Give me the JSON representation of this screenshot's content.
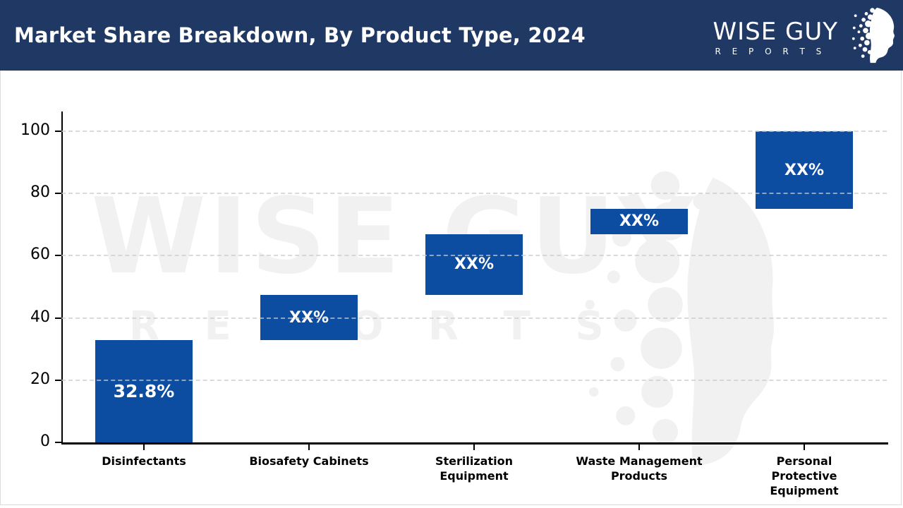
{
  "header": {
    "title": "Market Share Breakdown, By Product Type, 2024",
    "logo": {
      "wordmark": "WISE GUY",
      "reports": "R E P O R T S"
    }
  },
  "watermark": {
    "wordmark": "WISE GUY",
    "reports": "R E P O R T S"
  },
  "chart_data": {
    "type": "bar",
    "subtype": "waterfall",
    "title": "Market Share Breakdown, By Product Type, 2024",
    "categories": [
      "Disinfectants",
      "Biosafety Cabinets",
      "Sterilization\nEquipment",
      "Waste Management\nProducts",
      "Personal\nProtective\nEquipment"
    ],
    "segments": [
      {
        "category": "Disinfectants",
        "start": 0,
        "end": 32.8,
        "label": "32.8%"
      },
      {
        "category": "Biosafety Cabinets",
        "start": 32.8,
        "end": 47.4,
        "label": "XX%"
      },
      {
        "category": "Sterilization Equipment",
        "start": 47.4,
        "end": 67.0,
        "label": "XX%"
      },
      {
        "category": "Waste Management Products",
        "start": 67.0,
        "end": 75.0,
        "label": "XX%"
      },
      {
        "category": "Personal Protective Equipment",
        "start": 75.0,
        "end": 100.0,
        "label": "XX%"
      }
    ],
    "yticks": [
      0,
      20,
      40,
      60,
      80,
      100
    ],
    "ylim": [
      0,
      106
    ],
    "xlabel": "",
    "ylabel": "",
    "grid": "horizontal-dashed",
    "legend_position": "none",
    "bar_color": "#0c4da2",
    "bar_label_color": "#ffffff"
  },
  "colors": {
    "header_bg": "#1f3864",
    "bar": "#0c4da2",
    "grid": "#cbcbcb",
    "watermark": "#f1f1f1",
    "axis": "#000000"
  }
}
